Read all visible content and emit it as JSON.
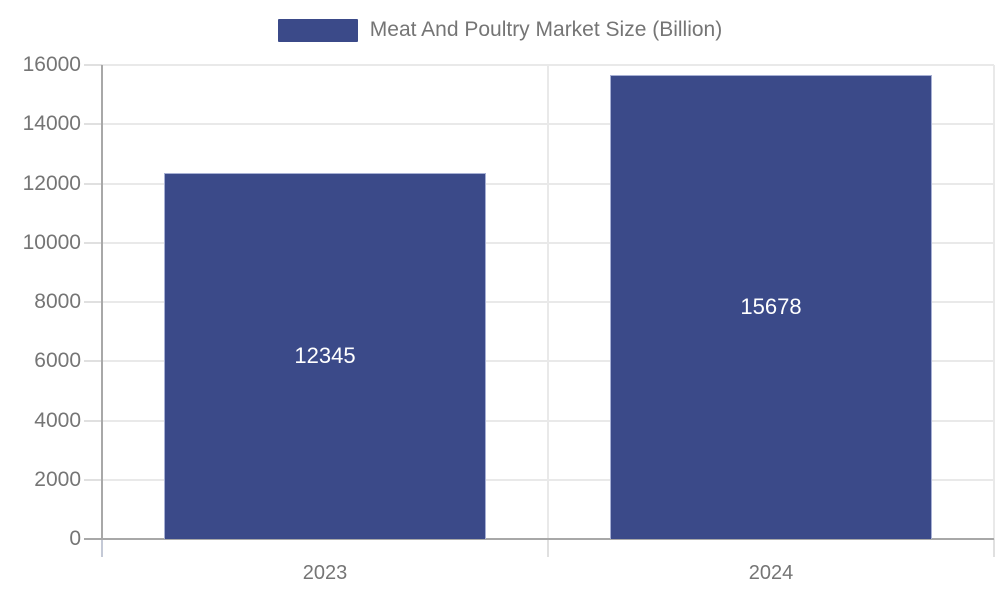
{
  "legend": {
    "series_label": "Meat And Poultry Market Size (Billion)"
  },
  "chart_data": {
    "type": "bar",
    "title": "Meat And Poultry Market Size (Billion)",
    "categories": [
      "2023",
      "2024"
    ],
    "values": [
      12345,
      15678
    ],
    "series": [
      {
        "name": "Meat And Poultry Market Size (Billion)",
        "values": [
          12345,
          15678
        ]
      }
    ],
    "xlabel": "",
    "ylabel": "",
    "ylim": [
      0,
      16000
    ],
    "ytick_interval": 2000,
    "grid": true,
    "legend_position": "top-center",
    "value_labels_inside_bars": true,
    "colors": {
      "bar_fill": "#3b4a89",
      "bar_border": "#a7b0d4",
      "value_label": "#ffffff",
      "grid_line": "#e9e9e9",
      "axis_line": "#a8a8a8",
      "text": "#757575"
    }
  }
}
